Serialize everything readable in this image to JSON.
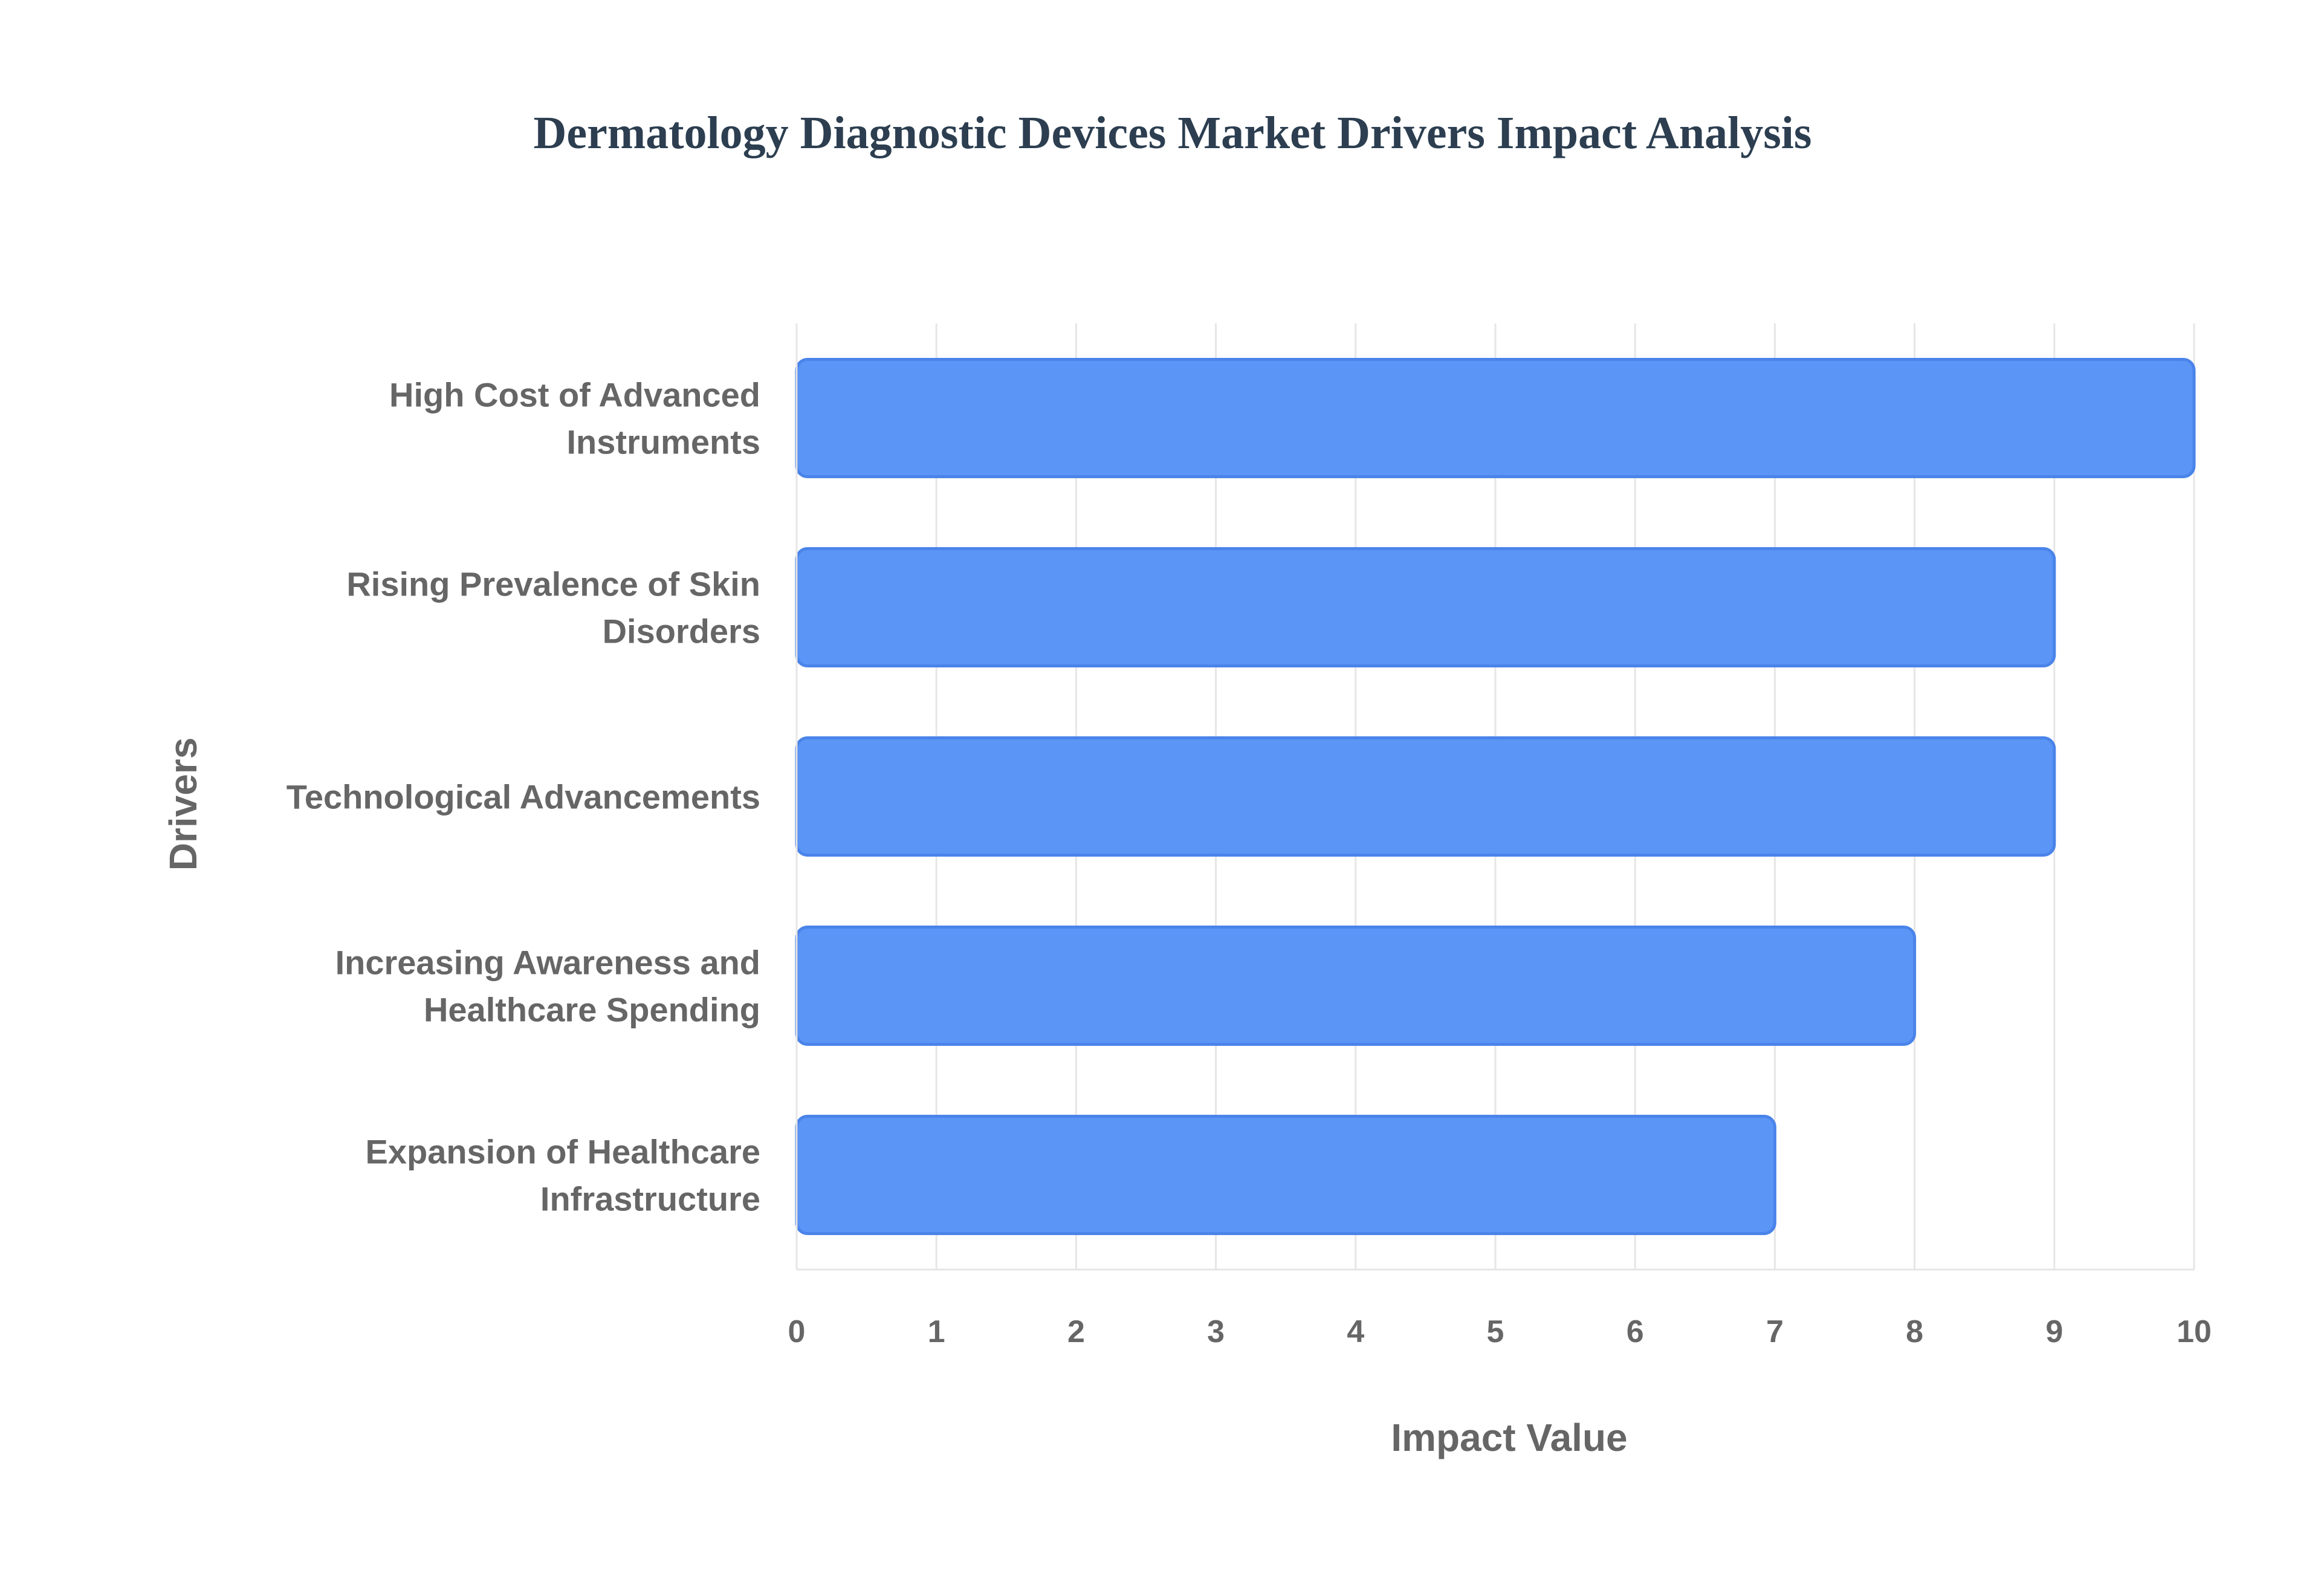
{
  "chart_data": {
    "type": "bar",
    "orientation": "horizontal",
    "title": "Dermatology Diagnostic Devices Market Drivers Impact Analysis",
    "xlabel": "Impact Value",
    "ylabel": "Drivers",
    "categories": [
      [
        "High Cost of Advanced",
        "Instruments"
      ],
      [
        "Rising Prevalence of Skin",
        "Disorders"
      ],
      [
        "Technological Advancements"
      ],
      [
        "Increasing Awareness and",
        "Healthcare Spending"
      ],
      [
        "Expansion of Healthcare",
        "Infrastructure"
      ]
    ],
    "values": [
      10,
      9,
      9,
      8,
      7
    ],
    "xlim": [
      0,
      10
    ],
    "xticks": [
      "0",
      "1",
      "2",
      "3",
      "4",
      "5",
      "6",
      "7",
      "8",
      "9",
      "10"
    ],
    "grid": true,
    "legend": "none",
    "colors": {
      "bar_fill": "#5b95f5",
      "bar_stroke": "#4a84ea",
      "title": "#2c3e50",
      "text": "#666666",
      "grid": "#e6e6e6"
    }
  }
}
